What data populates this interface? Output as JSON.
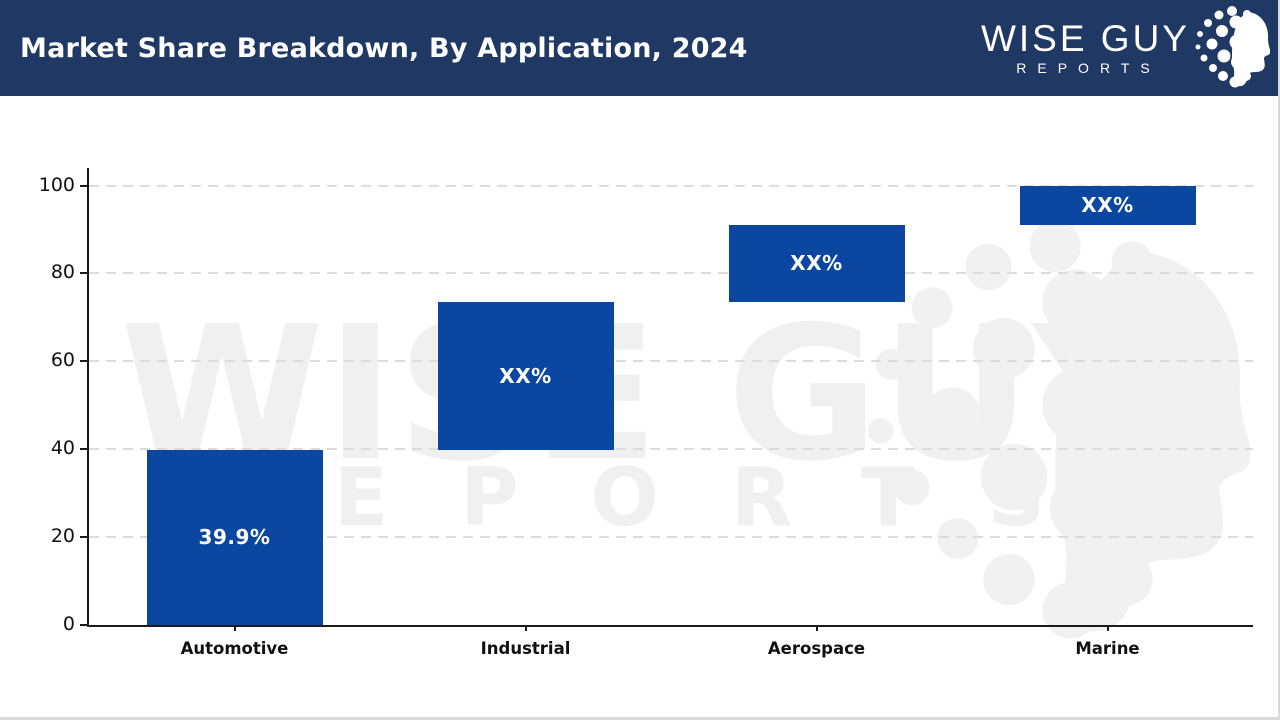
{
  "header": {
    "title": "Market Share Breakdown, By Application, 2024",
    "logo": {
      "line1": "WISE GUY",
      "line2": "REPORTS"
    }
  },
  "watermark": {
    "line1": "WISE GUY",
    "line2": "REPORTS"
  },
  "chart_data": {
    "type": "bar",
    "subtype": "waterfall",
    "title": "Market Share Breakdown, By Application, 2024",
    "categories": [
      "Automotive",
      "Industrial",
      "Aerospace",
      "Marine"
    ],
    "segments": [
      {
        "category": "Automotive",
        "start": 0,
        "end": 39.9,
        "label": "39.9%"
      },
      {
        "category": "Industrial",
        "start": 39.9,
        "end": 73.6,
        "label": "XX%"
      },
      {
        "category": "Aerospace",
        "start": 73.6,
        "end": 91.0,
        "label": "XX%"
      },
      {
        "category": "Marine",
        "start": 91.0,
        "end": 100.0,
        "label": "XX%"
      }
    ],
    "xlabel": "",
    "ylabel": "",
    "ylim": [
      0,
      104
    ],
    "yticks": [
      0,
      20,
      40,
      60,
      80,
      100
    ],
    "grid": "horizontal-dashed",
    "legend": "none",
    "bar_color": "#0b47a1",
    "bar_label_color": "#ffffff"
  },
  "colors": {
    "header_bg": "#1f3864",
    "header_text": "#ffffff",
    "bar": "#0b47a1",
    "grid": "#dcdcdc",
    "axis": "#1a1a1a",
    "watermark": "#f0f0f0",
    "background": "#ffffff"
  }
}
